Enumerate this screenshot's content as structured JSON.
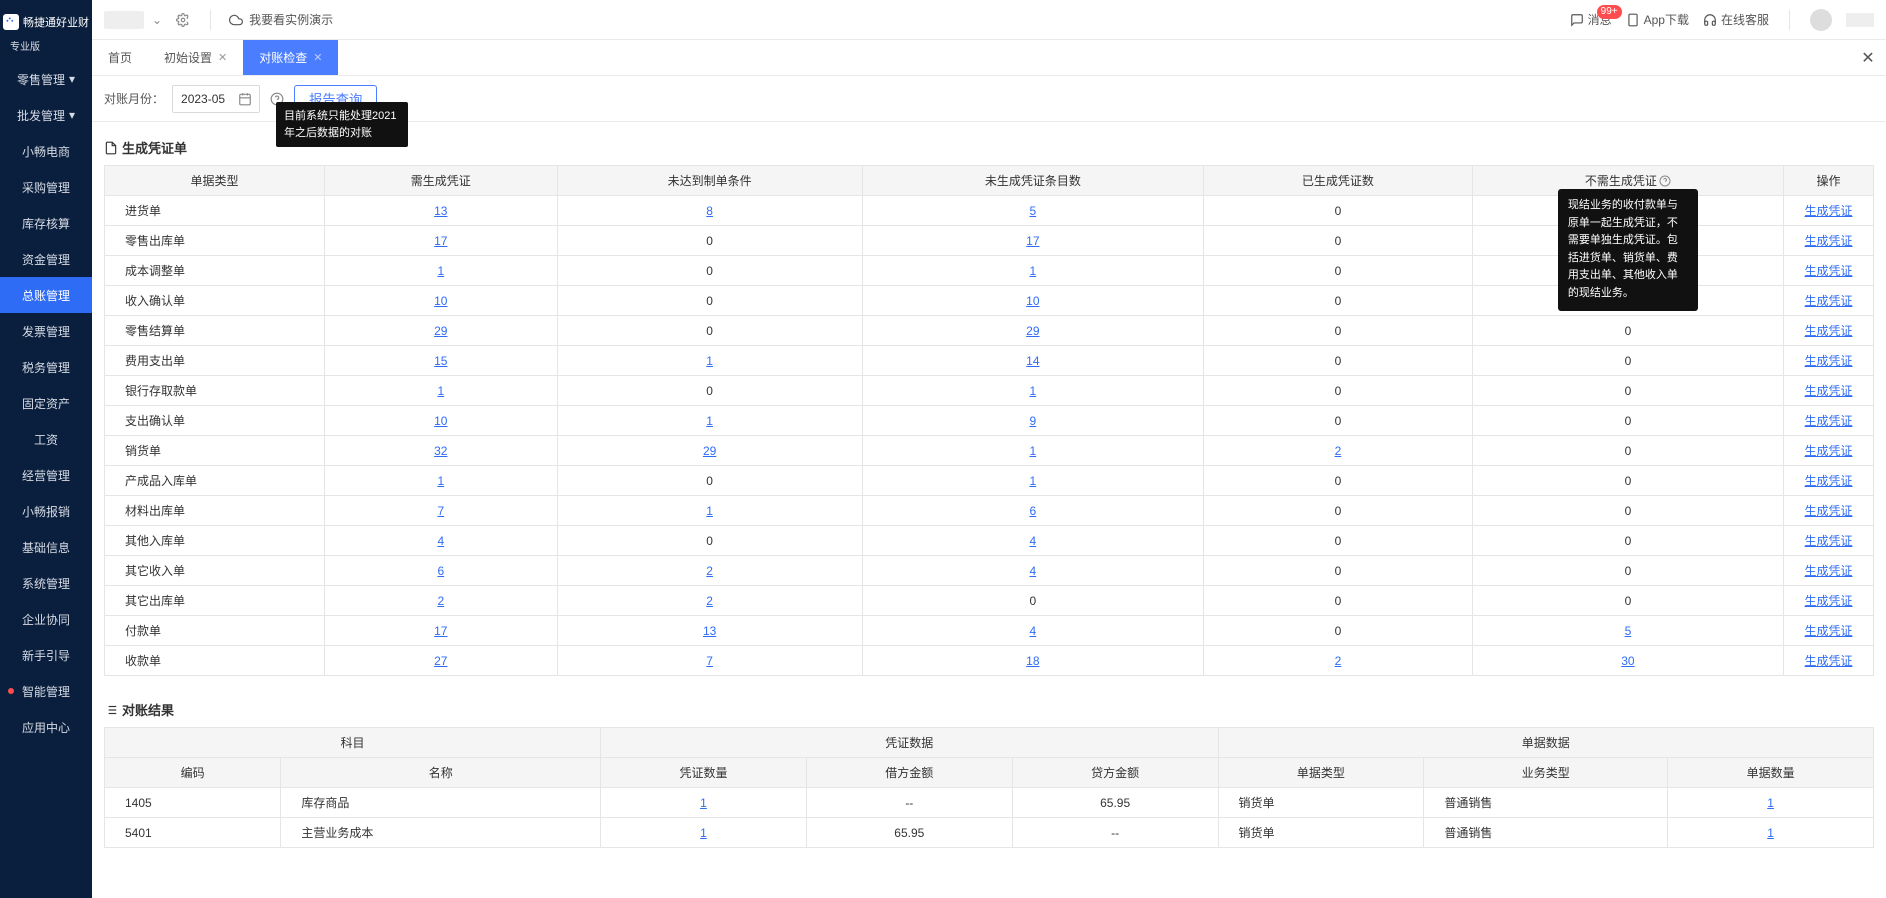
{
  "brand": {
    "name": "畅捷通好业财",
    "edition": "专业版"
  },
  "sidebar": [
    {
      "label": "零售管理",
      "chev": true
    },
    {
      "label": "批发管理",
      "chev": true
    },
    {
      "label": "小畅电商"
    },
    {
      "label": "采购管理"
    },
    {
      "label": "库存核算"
    },
    {
      "label": "资金管理"
    },
    {
      "label": "总账管理",
      "active": true
    },
    {
      "label": "发票管理"
    },
    {
      "label": "税务管理"
    },
    {
      "label": "固定资产"
    },
    {
      "label": "工资"
    },
    {
      "label": "经营管理"
    },
    {
      "label": "小畅报销"
    },
    {
      "label": "基础信息"
    },
    {
      "label": "系统管理"
    },
    {
      "label": "企业协同"
    },
    {
      "label": "新手引导"
    },
    {
      "label": "智能管理",
      "dot": true
    },
    {
      "label": "应用中心"
    }
  ],
  "header": {
    "demo": "我要看实例演示",
    "msg": "消息",
    "msg_badge": "99+",
    "app": "App下载",
    "cs": "在线客服"
  },
  "tabs": [
    {
      "label": "首页"
    },
    {
      "label": "初始设置",
      "closable": true
    },
    {
      "label": "对账检查",
      "closable": true,
      "active": true
    }
  ],
  "toolbar": {
    "month_label": "对账月份：",
    "month_value": "2023-05",
    "report_btn": "报告查询",
    "tip1": "目前系统只能处理2021年之后数据的对账"
  },
  "section1": {
    "title": "生成凭证单",
    "headers": [
      "单据类型",
      "需生成凭证",
      "未达到制单条件",
      "未生成凭证条目数",
      "已生成凭证数",
      "不需生成凭证",
      "操作"
    ],
    "tip2": "现结业务的收付款单与原单一起生成凭证，不需要单独生成凭证。包括进货单、销货单、费用支出单、其他收入单的现结业务。",
    "action_label": "生成凭证",
    "rows": [
      {
        "name": "进货单",
        "a": "13",
        "b": "8",
        "c": "5",
        "d": "0",
        "e": ""
      },
      {
        "name": "零售出库单",
        "a": "17",
        "b": "0",
        "c": "17",
        "d": "0",
        "e": ""
      },
      {
        "name": "成本调整单",
        "a": "1",
        "b": "0",
        "c": "1",
        "d": "0",
        "e": ""
      },
      {
        "name": "收入确认单",
        "a": "10",
        "b": "0",
        "c": "10",
        "d": "0",
        "e": ""
      },
      {
        "name": "零售结算单",
        "a": "29",
        "b": "0",
        "c": "29",
        "d": "0",
        "e": "0"
      },
      {
        "name": "费用支出单",
        "a": "15",
        "b": "1",
        "c": "14",
        "d": "0",
        "e": "0"
      },
      {
        "name": "银行存取款单",
        "a": "1",
        "b": "0",
        "c": "1",
        "d": "0",
        "e": "0"
      },
      {
        "name": "支出确认单",
        "a": "10",
        "b": "1",
        "c": "9",
        "d": "0",
        "e": "0"
      },
      {
        "name": "销货单",
        "a": "32",
        "b": "29",
        "c": "1",
        "d": "2",
        "e": "0",
        "d_link": true
      },
      {
        "name": "产成品入库单",
        "a": "1",
        "b": "0",
        "c": "1",
        "d": "0",
        "e": "0"
      },
      {
        "name": "材料出库单",
        "a": "7",
        "b": "1",
        "c": "6",
        "d": "0",
        "e": "0"
      },
      {
        "name": "其他入库单",
        "a": "4",
        "b": "0",
        "c": "4",
        "d": "0",
        "e": "0"
      },
      {
        "name": "其它收入单",
        "a": "6",
        "b": "2",
        "c": "4",
        "d": "0",
        "e": "0"
      },
      {
        "name": "其它出库单",
        "a": "2",
        "b": "2",
        "c": "0",
        "d": "0",
        "e": "0",
        "c_plain": true
      },
      {
        "name": "付款单",
        "a": "17",
        "b": "13",
        "c": "4",
        "d": "0",
        "e": "5",
        "e_link": true
      },
      {
        "name": "收款单",
        "a": "27",
        "b": "7",
        "c": "18",
        "d": "2",
        "e": "30",
        "d_link": true,
        "e_link": true
      }
    ]
  },
  "section2": {
    "title": "对账结果",
    "group_headers": [
      "科目",
      "凭证数据",
      "单据数据"
    ],
    "headers": [
      "编码",
      "名称",
      "凭证数量",
      "借方金额",
      "贷方金额",
      "单据类型",
      "业务类型",
      "单据数量"
    ],
    "rows": [
      {
        "code": "1405",
        "name": "库存商品",
        "qty": "1",
        "dr": "--",
        "cr": "65.95",
        "dtype": "销货单",
        "btype": "普通销售",
        "dqty": "1"
      },
      {
        "code": "5401",
        "name": "主营业务成本",
        "qty": "1",
        "dr": "65.95",
        "cr": "--",
        "dtype": "销货单",
        "btype": "普通销售",
        "dqty": "1"
      }
    ]
  }
}
